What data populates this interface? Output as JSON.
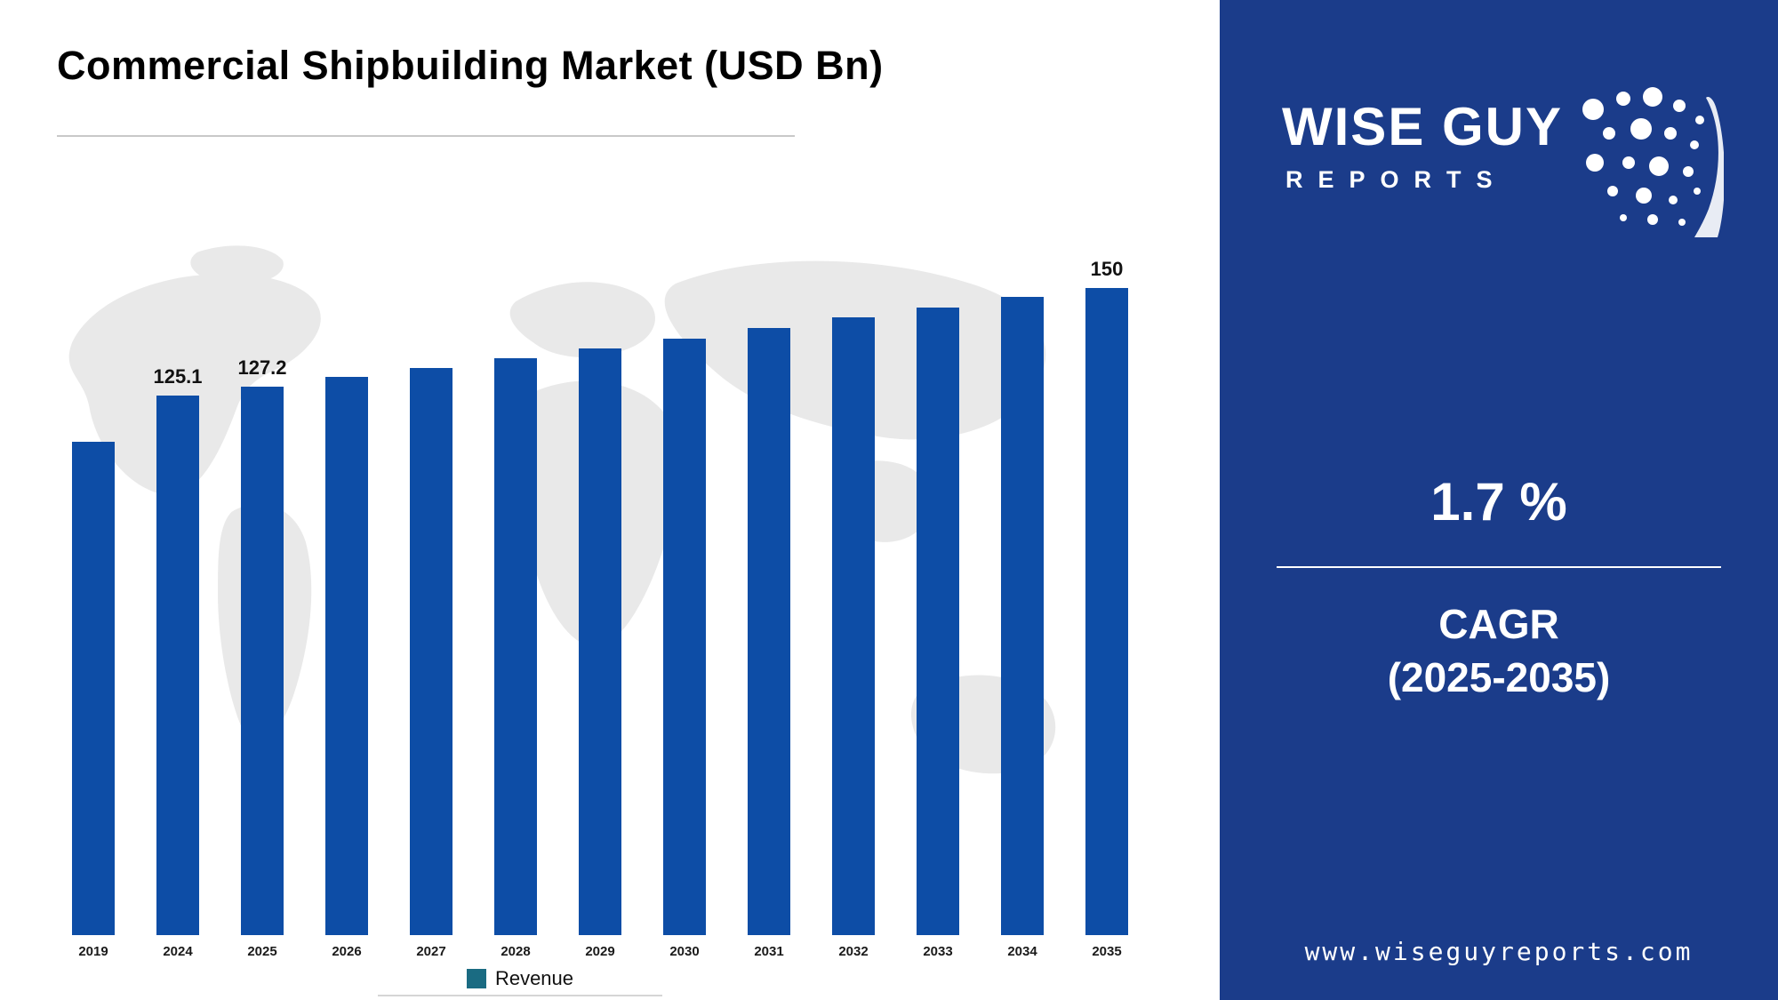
{
  "header": {
    "title": "Commercial Shipbuilding Market (USD Bn)"
  },
  "chart_data": {
    "type": "bar",
    "title": "Commercial Shipbuilding Market (USD Bn)",
    "categories": [
      "2019",
      "2024",
      "2025",
      "2026",
      "2027",
      "2028",
      "2029",
      "2030",
      "2031",
      "2032",
      "2033",
      "2034",
      "2035"
    ],
    "values": [
      114.5,
      125.1,
      127.2,
      129.4,
      131.6,
      133.8,
      136.1,
      138.4,
      140.8,
      143.2,
      145.6,
      148.1,
      150
    ],
    "bar_labels": [
      "",
      "125.1",
      "127.2",
      "",
      "",
      "",
      "",
      "",
      "",
      "",
      "",
      "",
      "150"
    ],
    "xlabel": "",
    "ylabel": "",
    "ylim": [
      0,
      155
    ],
    "grid": false,
    "legend": {
      "position": "bottom",
      "entries": [
        {
          "label": "Revenue",
          "color": "#1a6b82"
        }
      ]
    },
    "bar_color": "#0d4da6"
  },
  "legend": {
    "label": "Revenue"
  },
  "sidebar": {
    "logo": {
      "line1": "WISE GUY",
      "line2": "REPORTS"
    },
    "cagr": {
      "value": "1.7 %",
      "label": "CAGR",
      "range": "(2025-2035)"
    },
    "website": "www.wiseguyreports.com"
  },
  "colors": {
    "sidebar_bg": "#1b3c8a",
    "bar": "#0d4da6",
    "legend_swatch": "#1a6b82",
    "map": "#e9e9e9"
  }
}
